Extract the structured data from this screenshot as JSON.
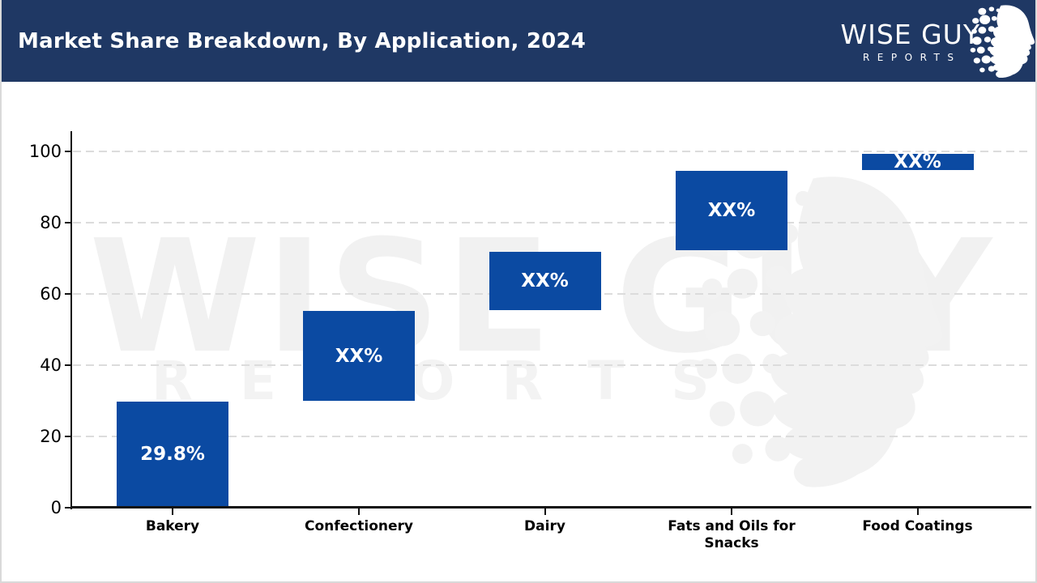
{
  "header": {
    "title": "Market Share Breakdown, By Application, 2024",
    "logo": {
      "primary": "WISE GUY",
      "secondary": "REPORTS"
    }
  },
  "watermark": {
    "primary": "WISE GUY",
    "secondary": "REPORTS"
  },
  "colors": {
    "header_bg": "#1f3864",
    "bar": "#0b4aa2",
    "bar_label": "#ffffff",
    "grid": "#dcdcdc",
    "axis": "#111111",
    "watermark": "#f1f1f1",
    "frame_border": "#d9d9d9"
  },
  "chart_data": {
    "type": "bar",
    "subtype": "waterfall",
    "title": "Market Share Breakdown, By Application, 2024",
    "categories": [
      "Bakery",
      "Confectionery",
      "Dairy",
      "Fats and Oils for Snacks",
      "Food Coatings"
    ],
    "segments": [
      {
        "category": "Bakery",
        "start": 0,
        "end": 29.8,
        "label": "29.8%"
      },
      {
        "category": "Confectionery",
        "start": 29.9,
        "end": 55.3,
        "label": "XX%"
      },
      {
        "category": "Dairy",
        "start": 55.4,
        "end": 71.8,
        "label": "XX%"
      },
      {
        "category": "Fats and Oils for Snacks",
        "start": 72.3,
        "end": 94.6,
        "label": "XX%"
      },
      {
        "category": "Food Coatings",
        "start": 94.8,
        "end": 99.4,
        "label": "XX%"
      }
    ],
    "xlabel": "",
    "ylabel": "",
    "yticks": [
      0,
      20,
      40,
      60,
      80,
      100
    ],
    "ylim": [
      0,
      105.5
    ],
    "grid": "horizontal-dashed",
    "legend": "none"
  }
}
